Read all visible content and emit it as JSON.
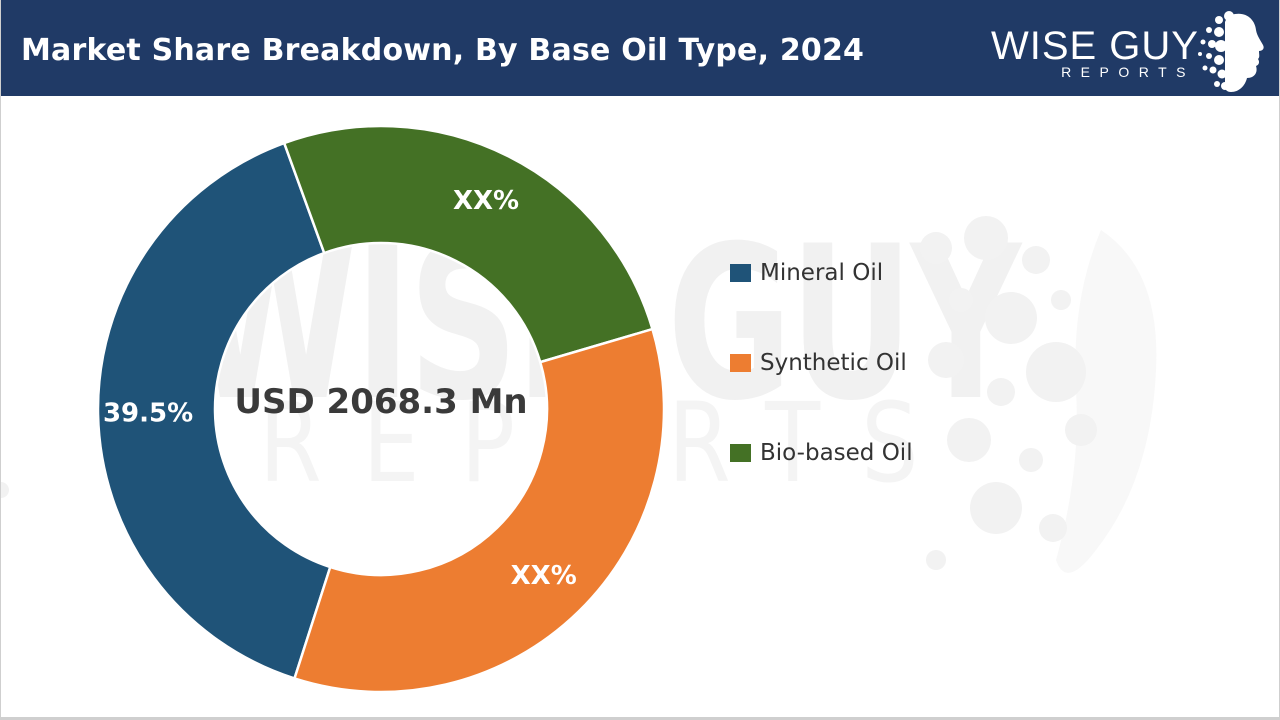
{
  "header": {
    "title": "Market Share Breakdown, By Base Oil Type, 2024",
    "logo": {
      "line1": "WISE GUY",
      "line2": "REPORTS"
    }
  },
  "theme": {
    "header_bg": "#203a66",
    "legend_text": "#333333",
    "center_text": "#3a3a3a"
  },
  "chart_data": {
    "type": "pie",
    "subtype": "donut",
    "title": "Market Share Breakdown, By Base Oil Type, 2024",
    "center_label": "USD 2068.3 Mn",
    "legend_position": "right",
    "start_angle_deg": 197.8,
    "draw_order": [
      0,
      2,
      1
    ],
    "segments": [
      {
        "name": "Mineral Oil",
        "value_pct": 39.5,
        "label": "39.5%",
        "color": "#1f5378"
      },
      {
        "name": "Synthetic Oil",
        "value_pct": 34.5,
        "label": "XX%",
        "color": "#ed7d31"
      },
      {
        "name": "Bio-based Oil",
        "value_pct": 26.0,
        "label": "XX%",
        "color": "#447125"
      }
    ]
  },
  "legend": {
    "items": [
      {
        "label": "Mineral Oil"
      },
      {
        "label": "Synthetic Oil"
      },
      {
        "label": "Bio-based Oil"
      }
    ]
  },
  "watermark": {
    "line1": "WISE GUY",
    "line2": "REPORTS"
  }
}
